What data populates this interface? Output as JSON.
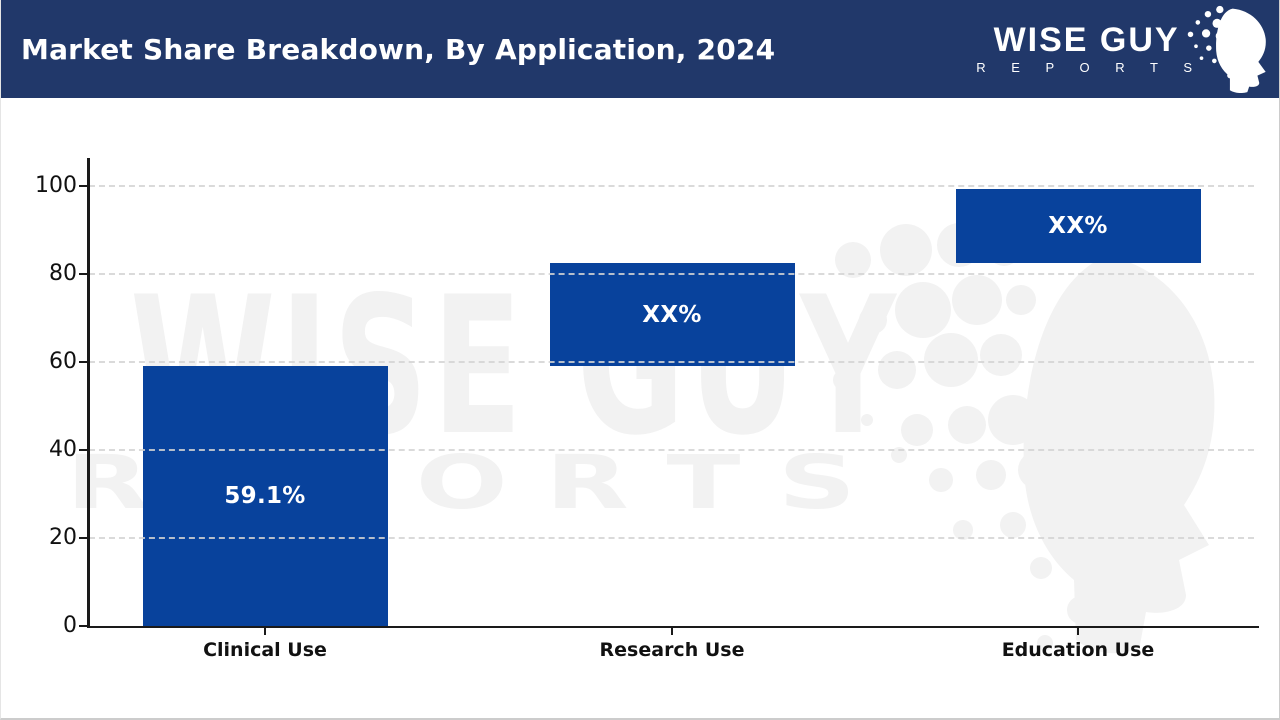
{
  "header": {
    "title": "Market Share Breakdown, By Application, 2024",
    "logo": {
      "line1": "WISE GUY",
      "line2": "R E P O R T S"
    }
  },
  "watermark": {
    "line1": "WISE GUY",
    "line2": "R E P O R T S"
  },
  "chart_data": {
    "type": "bar",
    "subtype": "floating-breakdown-waterfall",
    "title": "Market Share Breakdown, By Application, 2024",
    "categories": [
      "Clinical Use",
      "Research Use",
      "Education Use"
    ],
    "segments": [
      {
        "category": "Clinical Use",
        "start": 0,
        "end": 59.1,
        "label": "59.1%"
      },
      {
        "category": "Research Use",
        "start": 59.1,
        "end": 82.4,
        "label": "XX%"
      },
      {
        "category": "Education Use",
        "start": 82.4,
        "end": 99.3,
        "label": "XX%"
      }
    ],
    "xlabel": "",
    "ylabel": "",
    "yticks": [
      0,
      20,
      40,
      60,
      80,
      100
    ],
    "ylim": [
      0,
      105
    ],
    "grid": "horizontal-dashed-over-bars",
    "legend": "none",
    "colors": {
      "bar": "#08429c",
      "bar_label": "#ffffff",
      "header_bg": "#21386a",
      "axis": "#1a1a1a",
      "gridline": "#d4d4d4",
      "watermark": "#f2f2f2"
    }
  }
}
